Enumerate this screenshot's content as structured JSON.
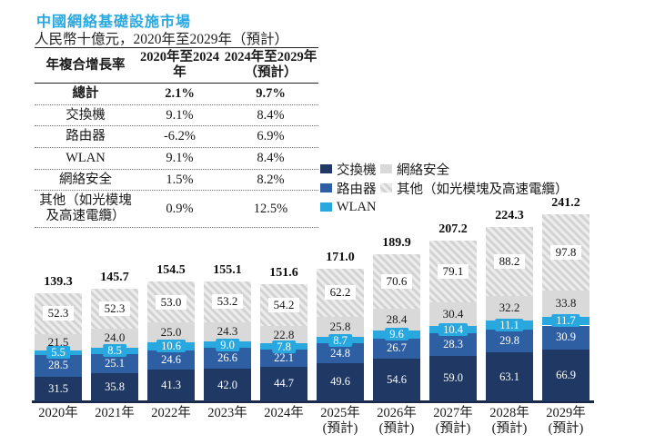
{
  "title": "中國網絡基礎設施市場",
  "subtitle": "人民幣十億元，2020年至2029年（預計）",
  "table": {
    "headers": [
      "年複合增長率",
      "2020年至2024年",
      "2024年至2029年\n（預計）"
    ],
    "rows": [
      {
        "label": "總計",
        "cagr_2020_2024": "2.1%",
        "cagr_2024_2029": "9.7%",
        "bold": true
      },
      {
        "label": "交換機",
        "cagr_2020_2024": "9.1%",
        "cagr_2024_2029": "8.4%",
        "bold": false
      },
      {
        "label": "路由器",
        "cagr_2020_2024": "-6.2%",
        "cagr_2024_2029": "6.9%",
        "bold": false
      },
      {
        "label": "WLAN",
        "cagr_2020_2024": "9.1%",
        "cagr_2024_2029": "8.4%",
        "bold": false
      },
      {
        "label": "網絡安全",
        "cagr_2020_2024": "1.5%",
        "cagr_2024_2029": "8.2%",
        "bold": false
      },
      {
        "label": "其他（如光模塊\n及高速電纜）",
        "cagr_2020_2024": "0.9%",
        "cagr_2024_2029": "12.5%",
        "bold": false
      }
    ]
  },
  "legend": {
    "col1": [
      {
        "label": "交換機",
        "series": 0
      },
      {
        "label": "路由器",
        "series": 1
      },
      {
        "label": "WLAN",
        "series": 2
      }
    ],
    "col2": [
      {
        "label": "網絡安全",
        "series": 3
      },
      {
        "label": "其他（如光模塊及高速電纜）",
        "series": 4
      }
    ]
  },
  "colors": {
    "title": "#29A9E0",
    "switch": "#1F3864",
    "router": "#2E5FA3",
    "wlan": "#29A8E0",
    "security": "#D9D9D9",
    "others_bg": "#ECECEC",
    "others_stripe": "#D2D2D2",
    "axis": "#1B2A4A"
  },
  "chart_data": {
    "type": "bar",
    "stacked": true,
    "title": "中國網絡基礎設施市場",
    "ylabel": "人民幣十億元",
    "legend_position": "top-right",
    "grid": false,
    "categories": [
      "2020年",
      "2021年",
      "2022年",
      "2023年",
      "2024年",
      "2025年\n(預計)",
      "2026年\n(預計)",
      "2027年\n(預計)",
      "2028年\n(預計)",
      "2029年\n(預計)"
    ],
    "series": [
      {
        "name": "交換機",
        "values": [
          31.5,
          35.8,
          41.3,
          42.0,
          44.7,
          49.6,
          54.6,
          59.0,
          63.1,
          66.9
        ]
      },
      {
        "name": "路由器",
        "values": [
          28.5,
          25.1,
          24.6,
          26.6,
          22.1,
          24.8,
          26.7,
          28.3,
          29.8,
          30.9
        ]
      },
      {
        "name": "WLAN",
        "values": [
          5.5,
          8.5,
          10.6,
          9.0,
          7.8,
          8.7,
          9.6,
          10.4,
          11.1,
          11.7
        ]
      },
      {
        "name": "網絡安全",
        "values": [
          21.5,
          24.0,
          25.0,
          24.3,
          22.8,
          25.8,
          28.4,
          30.4,
          32.2,
          33.8
        ]
      },
      {
        "name": "其他（如光模塊及高速電纜）",
        "values": [
          52.3,
          52.3,
          53.0,
          53.2,
          54.2,
          62.2,
          70.6,
          79.1,
          88.2,
          97.8
        ]
      }
    ],
    "totals": [
      139.3,
      145.7,
      154.5,
      155.1,
      151.6,
      171.0,
      189.9,
      207.2,
      224.3,
      241.2
    ]
  }
}
